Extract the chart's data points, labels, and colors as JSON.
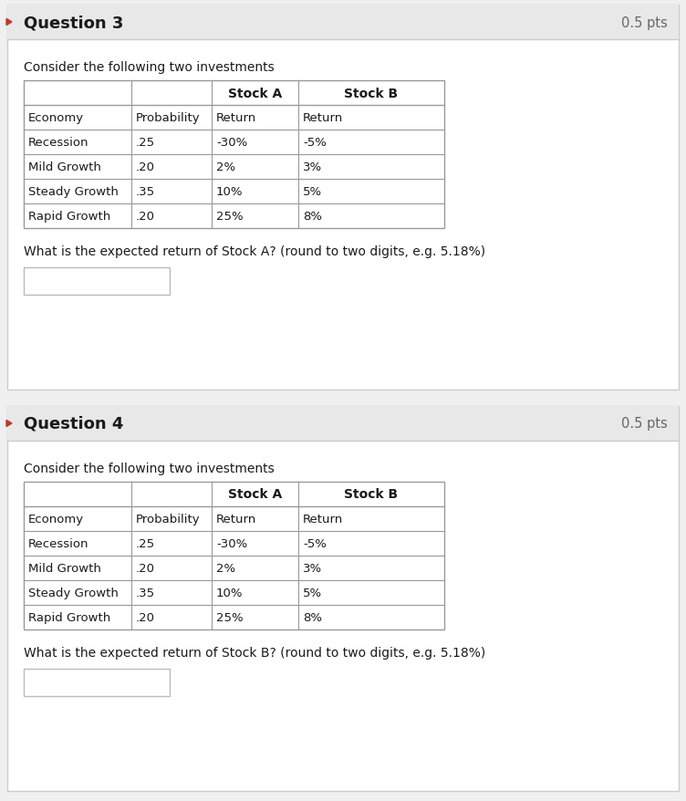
{
  "bg_color": "#f0f0f0",
  "white": "#ffffff",
  "border_color": "#cccccc",
  "header_bg": "#e8e8e8",
  "arrow_color": "#c0392b",
  "text_dark": "#1a1a1a",
  "text_gray": "#666666",
  "table_border": "#999999",
  "questions": [
    {
      "title": "Question 3",
      "pts": "0.5 pts",
      "intro": "Consider the following two investments",
      "data_rows": [
        [
          "Economy",
          "Probability",
          "Return",
          "Return"
        ],
        [
          "Recession",
          ".25",
          "-30%",
          "-5%"
        ],
        [
          "Mild Growth",
          ".20",
          "2%",
          "3%"
        ],
        [
          "Steady Growth",
          ".35",
          "10%",
          "5%"
        ],
        [
          "Rapid Growth",
          ".20",
          "25%",
          "8%"
        ]
      ],
      "question_text": "What is the expected return of Stock A? (round to two digits, e.g. 5.18%)"
    },
    {
      "title": "Question 4",
      "pts": "0.5 pts",
      "intro": "Consider the following two investments",
      "data_rows": [
        [
          "Economy",
          "Probability",
          "Return",
          "Return"
        ],
        [
          "Recession",
          ".25",
          "-30%",
          "-5%"
        ],
        [
          "Mild Growth",
          ".20",
          "2%",
          "3%"
        ],
        [
          "Steady Growth",
          ".35",
          "10%",
          "5%"
        ],
        [
          "Rapid Growth",
          ".20",
          "25%",
          "8%"
        ]
      ],
      "question_text": "What is the expected return of Stock B? (round to two digits, e.g. 5.18%)"
    }
  ]
}
